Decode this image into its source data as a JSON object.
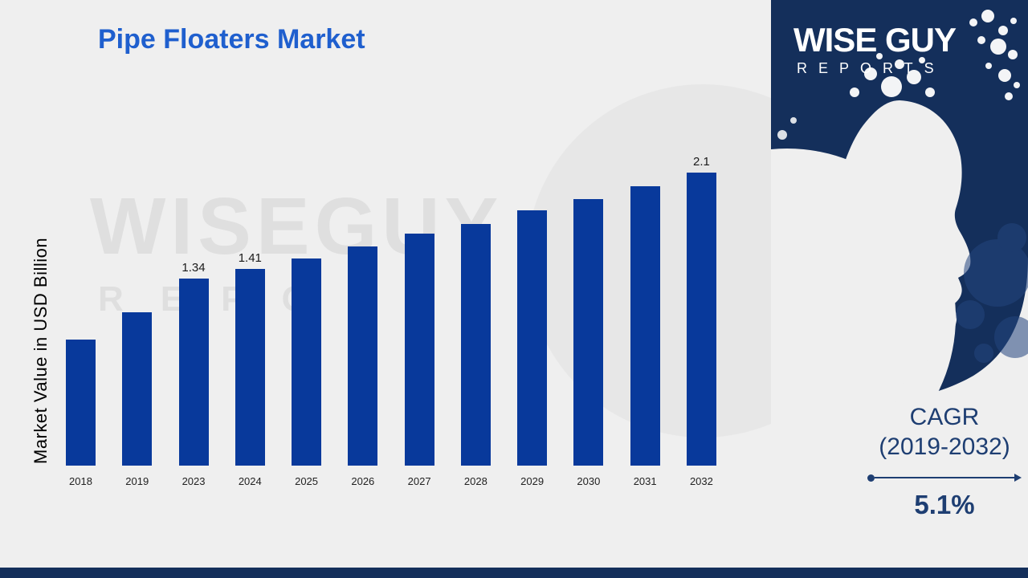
{
  "page": {
    "title": "Pipe Floaters Market",
    "background": "#efefef"
  },
  "logo": {
    "line1": "WISE GUY",
    "line2": "REPORTS"
  },
  "watermark": {
    "line1": "WISEGUY",
    "line2": "REPORTS"
  },
  "chart_data": {
    "type": "bar",
    "title": "Pipe Floaters Market",
    "ylabel": "Market Value in USD Billion",
    "categories": [
      "2018",
      "2019",
      "2023",
      "2024",
      "2025",
      "2026",
      "2027",
      "2028",
      "2029",
      "2030",
      "2031",
      "2032"
    ],
    "values": [
      0.9,
      1.1,
      1.34,
      1.41,
      1.48,
      1.57,
      1.66,
      1.73,
      1.83,
      1.91,
      2.0,
      2.1
    ],
    "data_labels": {
      "2023": "1.34",
      "2024": "1.41",
      "2032": "2.1"
    },
    "ylim": [
      0,
      2.3
    ],
    "grid": false,
    "legend": "none",
    "bar_color": "#08399b"
  },
  "cagr": {
    "label": "CAGR",
    "range": "(2019-2032)",
    "value": "5.1%"
  },
  "colors": {
    "title_blue": "#1f5fce",
    "bar_navy": "#08399b",
    "panel_navy": "#142f5b",
    "cagr_navy": "#1e3e72",
    "background": "#efefef",
    "watermark_gray": "#dfdfdf"
  }
}
